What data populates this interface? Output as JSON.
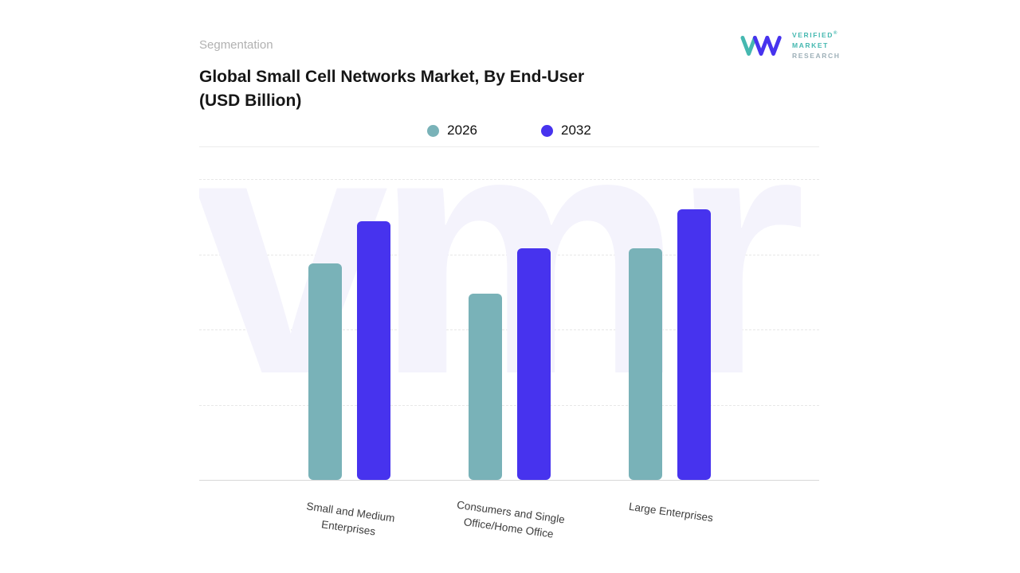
{
  "header": {
    "eyebrow": "Segmentation",
    "logo": {
      "line1": "VERIFIED",
      "line2": "MARKET",
      "line3": "RESEARCH",
      "trademark": "®"
    }
  },
  "title": {
    "line1": "Global Small Cell Networks Market, By End-User",
    "line2": "(USD Billion)"
  },
  "watermark_text": "vmr",
  "colors": {
    "accent_teal": "#79b2b8",
    "accent_purple": "#4733ee",
    "watermark": "#f4f3fc",
    "gridline": "#e7e7e7",
    "axis_baseline": "#d8d8d8"
  },
  "chart_data": {
    "type": "bar",
    "title": "Global Small Cell Networks Market, By End-User (USD Billion)",
    "categories": [
      "Small and Medium\nEnterprises",
      "Consumers and Single\nOffice/Home Office",
      "Large Enterprises"
    ],
    "series": [
      {
        "name": "2026",
        "color": "#79b2b8",
        "values": [
          72,
          62,
          77
        ]
      },
      {
        "name": "2032",
        "color": "#4733ee",
        "values": [
          86,
          77,
          90
        ]
      }
    ],
    "xlabel": "",
    "ylabel": "",
    "ylim": [
      0,
      100
    ],
    "y_axis_tick_labels_visible": false,
    "grid": "dashed-horizontal",
    "legend_position": "top-center",
    "note": "Y-axis is unlabeled in the figure; values are estimated relative bar heights as a percent of the plot height."
  }
}
